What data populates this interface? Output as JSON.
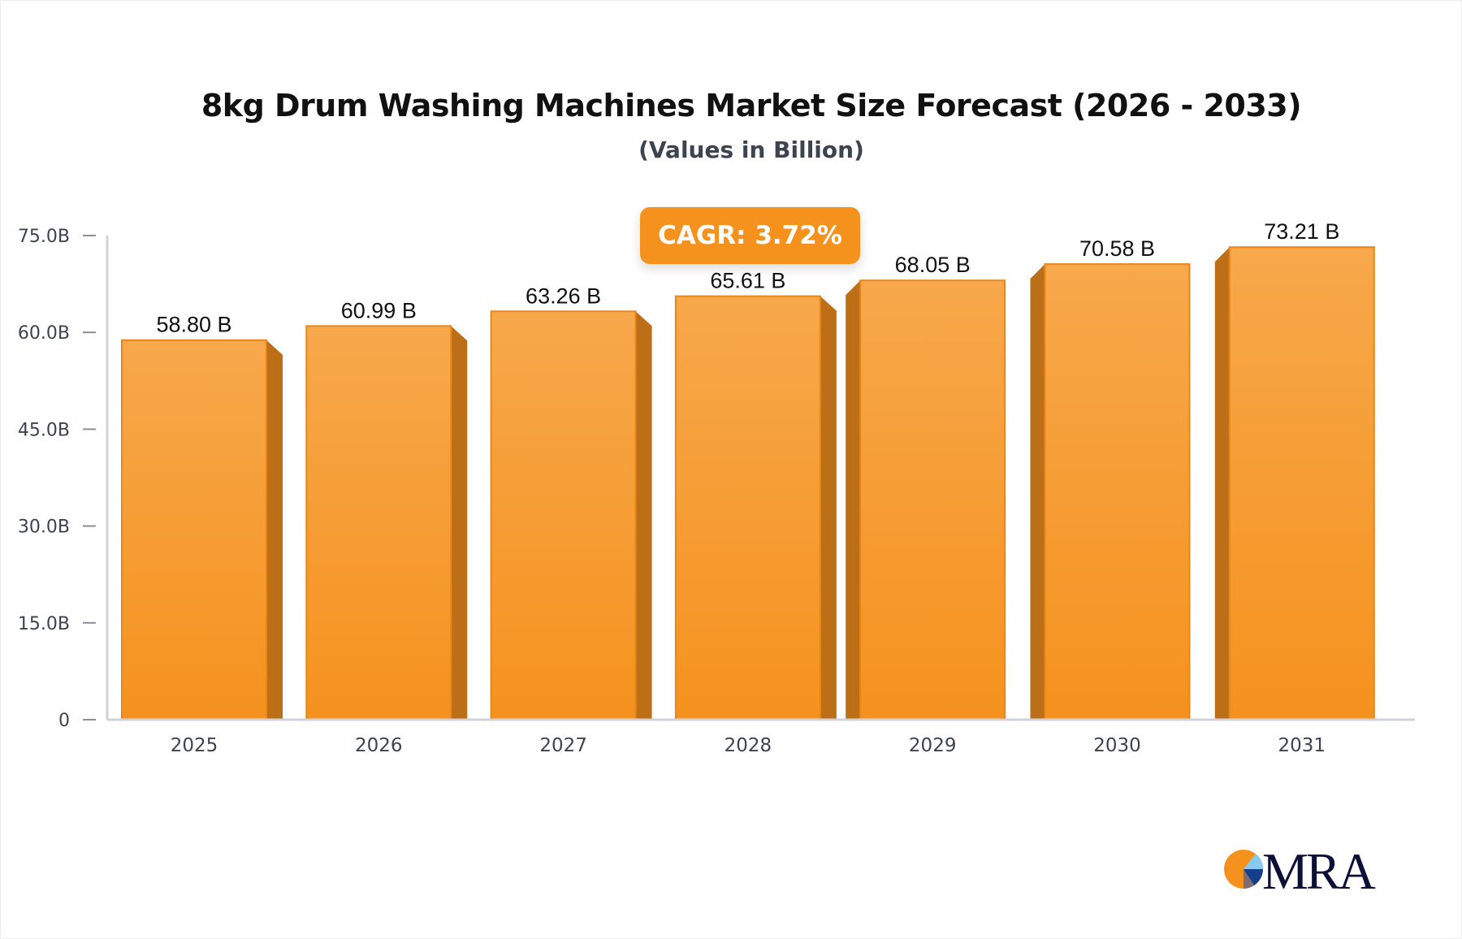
{
  "chart_data": {
    "type": "bar",
    "title": "8kg Drum Washing Machines Market Size Forecast (2026 - 2033)",
    "subtitle": "(Values in Billion)",
    "categories": [
      "2025",
      "2026",
      "2027",
      "2028",
      "2029",
      "2030",
      "2031"
    ],
    "values": [
      58.8,
      60.99,
      63.26,
      65.61,
      68.05,
      70.58,
      73.21
    ],
    "data_labels": [
      "58.80 B",
      "60.99 B",
      "63.26 B",
      "65.61 B",
      "68.05 B",
      "70.58 B",
      "73.21 B"
    ],
    "ylim": [
      0,
      75
    ],
    "yticks": [
      0,
      15,
      30,
      45,
      60,
      75
    ],
    "ytick_labels": [
      "0",
      "15.0B",
      "30.0B",
      "45.0B",
      "60.0B",
      "75.0B"
    ],
    "xlabel": "",
    "ylabel": "",
    "grid": false,
    "bar_color": "#f5921e",
    "annotation": "CAGR: 3.72%"
  },
  "logo": {
    "text": "MRA"
  }
}
